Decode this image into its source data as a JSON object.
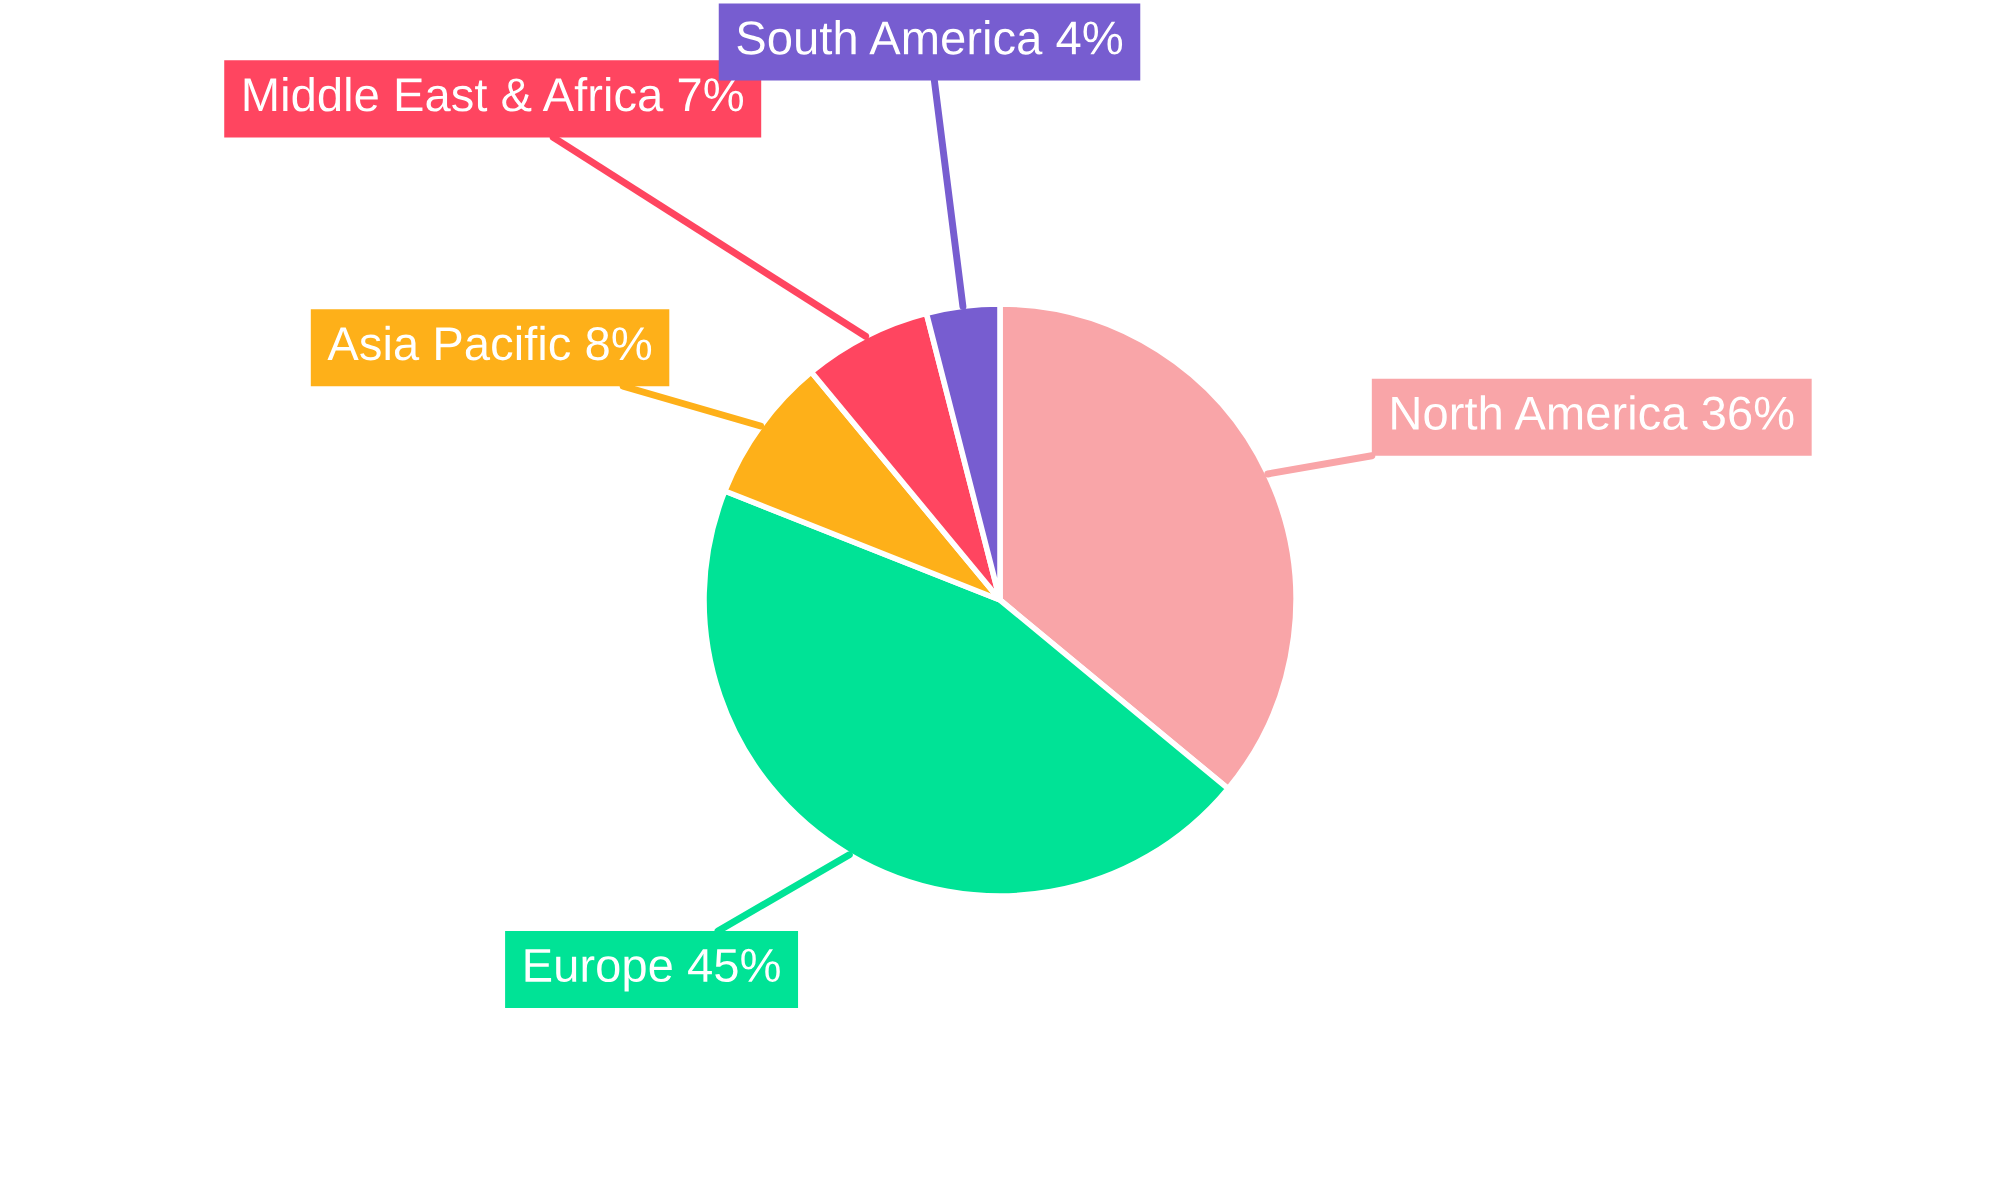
{
  "chart_data": {
    "type": "pie",
    "categories": [
      "North America",
      "Europe",
      "Asia Pacific",
      "Middle East & Africa",
      "South America"
    ],
    "values": [
      36,
      45,
      8,
      7,
      4
    ],
    "value_labels": [
      "36%",
      "45%",
      "8%",
      "7%",
      "4%"
    ],
    "colors": [
      "#f9a5a8",
      "#00e396",
      "#feb019",
      "#ff4560",
      "#775dd0"
    ],
    "legend": false
  }
}
